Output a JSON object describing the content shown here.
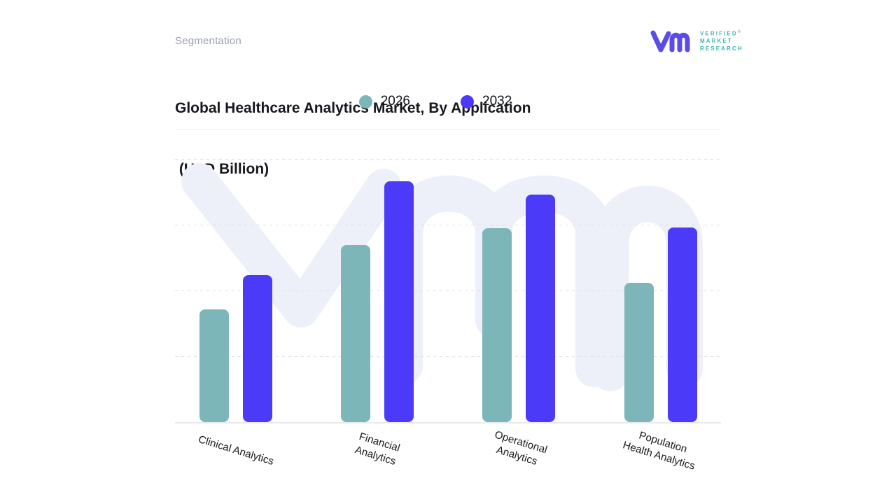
{
  "header": {
    "eyebrow": "Segmentation",
    "title_line1": "Global Healthcare Analytics Market, By Application",
    "title_line2": " (USD Billion)"
  },
  "logo": {
    "brand_lines": [
      "VERIFIED",
      "MARKET",
      "RESEARCH"
    ],
    "registered_mark": "®",
    "mark_color": "#5b4be9",
    "text_color": "#3eb5ae"
  },
  "legend": [
    {
      "label": "2026",
      "color": "#7cb6b8"
    },
    {
      "label": "2032",
      "color": "#4b3af7"
    }
  ],
  "chart_data": {
    "type": "bar",
    "title": "Global Healthcare Analytics Market, By Application (USD Billion)",
    "value_unit": "USD Billion",
    "categories": [
      "Clinical Analytics",
      "Financial Analytics",
      "Operational Analytics",
      "Population Health Analytics"
    ],
    "category_display_lines": [
      [
        "Clinical Analytics"
      ],
      [
        "Financial",
        "Analytics"
      ],
      [
        "Operational",
        "Analytics"
      ],
      [
        "Population",
        "Health Analytics"
      ]
    ],
    "series": [
      {
        "name": "2026",
        "color": "#7cb6b8",
        "values": [
          1.72,
          2.71,
          2.96,
          2.13
        ]
      },
      {
        "name": "2032",
        "color": "#4b3af7",
        "values": [
          2.25,
          3.68,
          3.48,
          2.97
        ]
      }
    ],
    "value_axis": {
      "tick_labels_visible": false,
      "ylim": [
        0,
        4.02
      ],
      "gridline_interval": 1,
      "gridline_style": "dashed",
      "units_note": "no numeric tick labels shown; values estimated in gridline units"
    },
    "legend_position": "top-center",
    "watermark": "VMR logo, light lavender #eef0f9 behind bars",
    "colors": {
      "background": "#ffffff",
      "gridline": "#dcdfe8",
      "baseline": "#e8e9ed",
      "label_text": "#17181c"
    }
  }
}
